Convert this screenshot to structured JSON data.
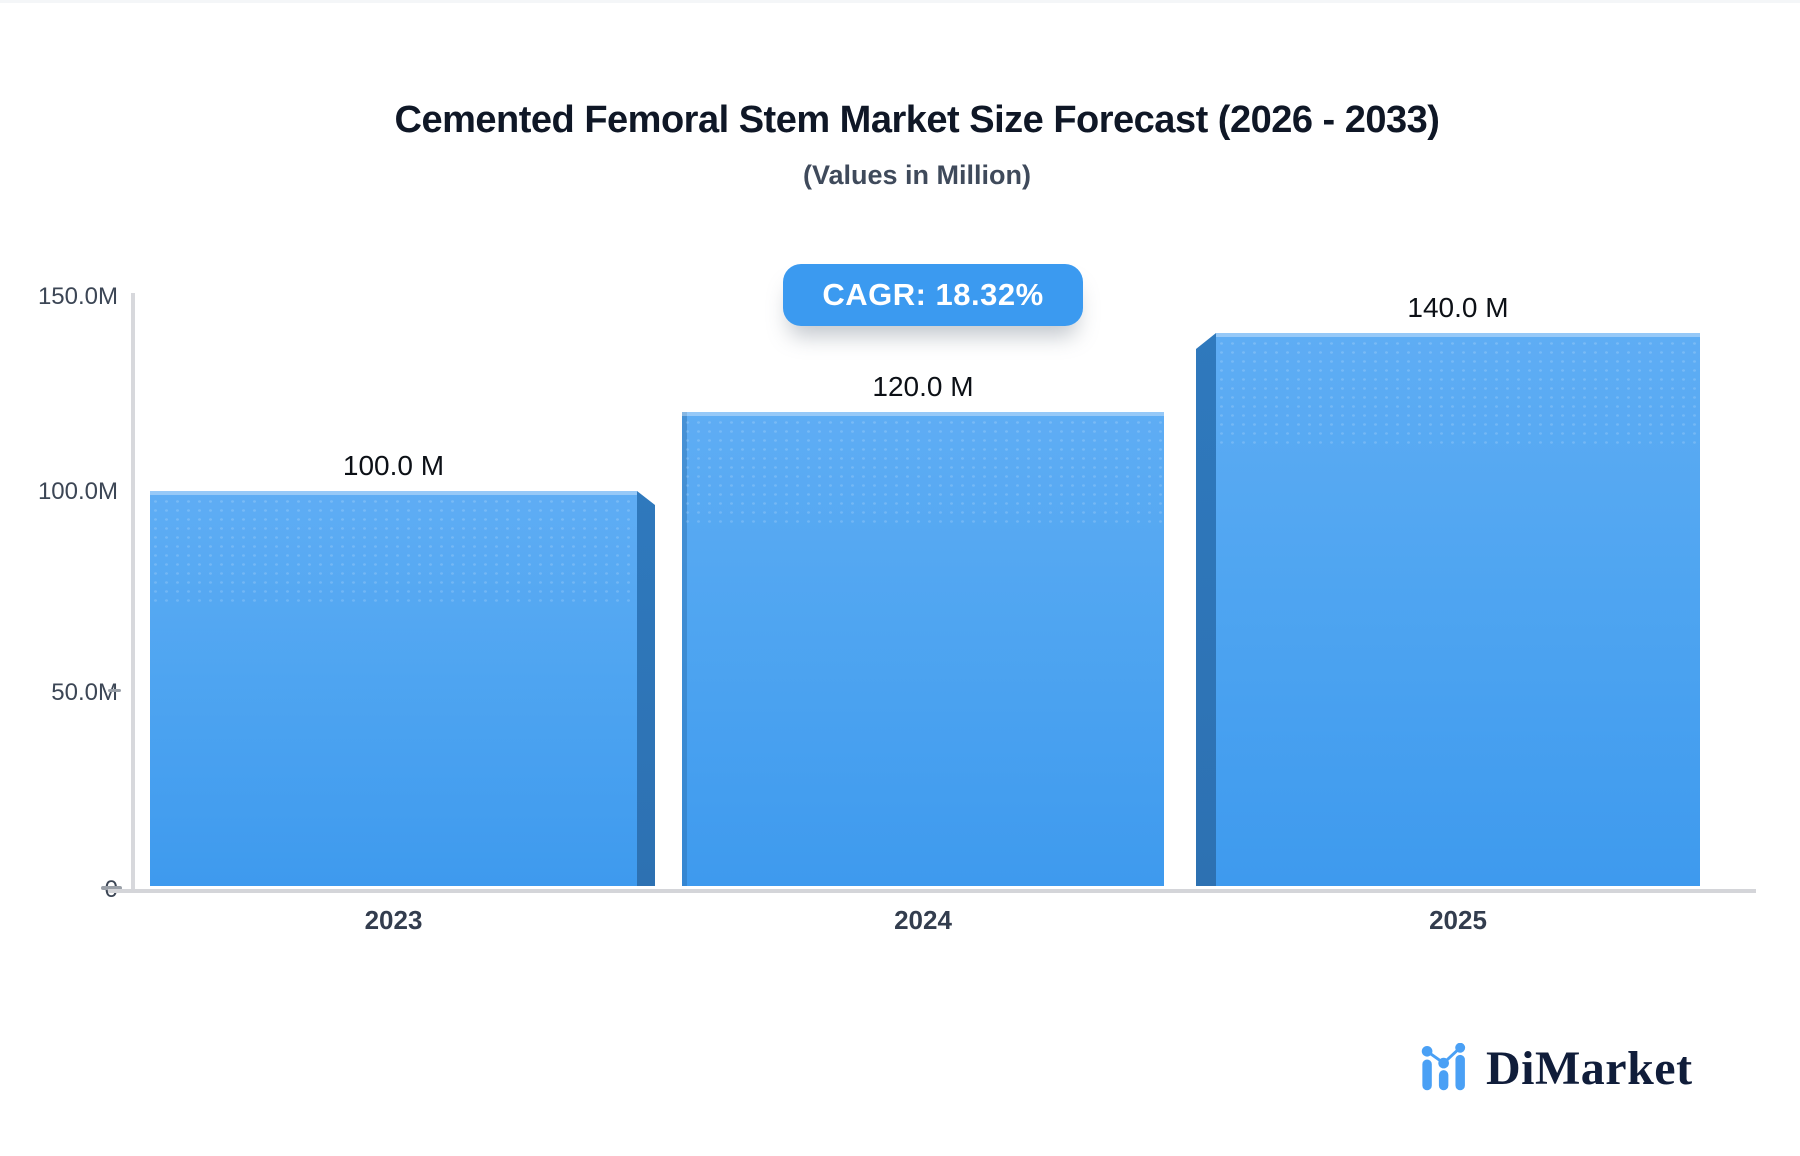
{
  "title": "Cemented Femoral Stem Market Size Forecast (2026 - 2033)",
  "subtitle": "(Values in Million)",
  "badge": {
    "label": "CAGR: 18.32%"
  },
  "chart_data": {
    "type": "bar",
    "categories": [
      "2023",
      "2024",
      "2025"
    ],
    "values": [
      100,
      120,
      140
    ],
    "value_labels": [
      "100.0 M",
      "120.0 M",
      "140.0 M"
    ],
    "unit": "Million",
    "title": "Cemented Femoral Stem Market Size Forecast (2026 - 2033)",
    "subtitle": "(Values in Million)",
    "ylabel": "",
    "xlabel": "",
    "ylim": [
      0,
      150
    ],
    "y_ticks": [
      "150.0M",
      "100.0M",
      "50.0M",
      "0"
    ],
    "y_tick_values": [
      150,
      100,
      50,
      0
    ],
    "grid": "off",
    "legend": "none",
    "bar_style": "3d-bevel, gradient blue, dotted texture at top"
  },
  "colors": {
    "bar_top": "#5FADF4",
    "bar_bottom": "#3E9AEE",
    "bar_side_face": "#2E76B8",
    "badge_bg": "#3B9AF0",
    "badge_text": "#FFFFFF",
    "axis_line": "#D6D7DB",
    "title_text": "#0F1726",
    "subtitle_text": "#3F4A5B",
    "tick_text": "#3C4655",
    "value_label_text": "#0C1016",
    "brand_navy": "#101D3A",
    "brand_blue": "#4AA0F5"
  },
  "brand": {
    "name": "DiMarket"
  }
}
